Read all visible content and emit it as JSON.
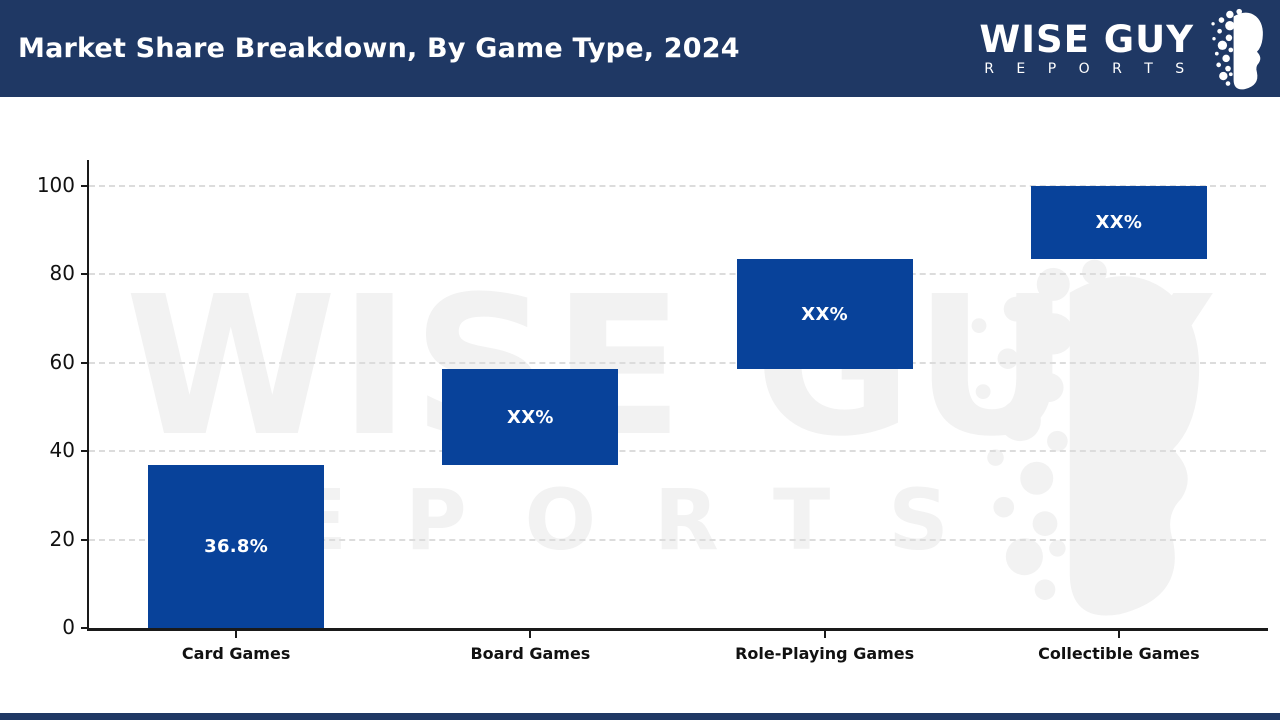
{
  "header": {
    "title": "Market Share Breakdown, By Game Type, 2024"
  },
  "logo": {
    "name": "WISE GUY",
    "subtitle": "R E P O R T S"
  },
  "watermark": {
    "line1": "WISE GUY",
    "line2": "REPORTS"
  },
  "colors": {
    "header_navy": "#1f3864",
    "bar_blue": "#08429a",
    "gridline_gray": "#dcdcdc",
    "watermark_gray": "#f2f2f2",
    "label_white": "#ffffff",
    "axis_black": "#1a1a1a"
  },
  "chart_data": {
    "type": "bar",
    "subtype": "waterfall",
    "title": "Market Share Breakdown, By Game Type, 2024",
    "categories": [
      "Card Games",
      "Board Games",
      "Role-Playing Games",
      "Collectible Games"
    ],
    "segments": [
      {
        "category": "Card Games",
        "start": 0,
        "end": 36.8,
        "label": "36.8%"
      },
      {
        "category": "Board Games",
        "start": 36.8,
        "end": 58.6,
        "label": "XX%"
      },
      {
        "category": "Role-Playing Games",
        "start": 58.6,
        "end": 83.4,
        "label": "XX%"
      },
      {
        "category": "Collectible Games",
        "start": 83.4,
        "end": 100,
        "label": "XX%"
      }
    ],
    "values_pct": [
      36.8,
      21.8,
      24.8,
      16.6
    ],
    "xlabel": "",
    "ylabel": "",
    "ylim": [
      0,
      100
    ],
    "yticks": [
      0,
      20,
      40,
      60,
      80,
      100
    ],
    "grid": "dashed-horizontal",
    "legend": "none"
  }
}
